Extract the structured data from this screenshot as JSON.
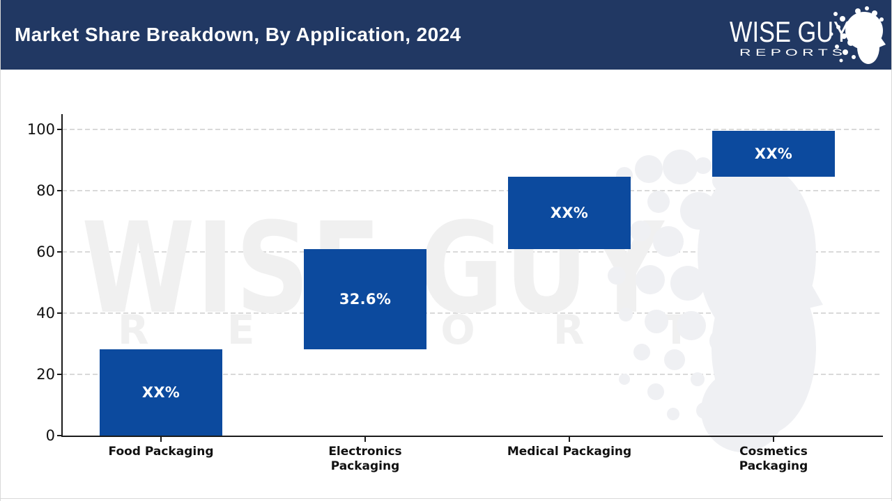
{
  "header": {
    "title": "Market Share Breakdown, By Application, 2024",
    "bg_color": "#213863",
    "logo": {
      "name_line": "WISE GUY",
      "sub_line": "R E P O R T S"
    }
  },
  "watermark": {
    "name_line": "WISE GUY",
    "sub_line": "R E P O R T S"
  },
  "chart_data": {
    "type": "bar",
    "subtype": "waterfall",
    "title": "Market Share Breakdown, By Application, 2024",
    "categories": [
      "Food Packaging",
      "Electronics Packaging",
      "Medical Packaging",
      "Cosmetics Packaging"
    ],
    "category_label_lines": [
      [
        "Food Packaging"
      ],
      [
        "Electronics",
        "Packaging"
      ],
      [
        "Medical Packaging"
      ],
      [
        "Cosmetics",
        "Packaging"
      ]
    ],
    "series": [
      {
        "name": "Market share (%)",
        "segments": [
          {
            "category": "Food Packaging",
            "start": 0,
            "end": 28.2,
            "label": "XX%"
          },
          {
            "category": "Electronics Packaging",
            "start": 28.2,
            "end": 60.8,
            "label": "32.6%"
          },
          {
            "category": "Medical Packaging",
            "start": 60.8,
            "end": 84.5,
            "label": "XX%"
          },
          {
            "category": "Cosmetics Packaging",
            "start": 84.5,
            "end": 99.5,
            "label": "XX%"
          }
        ]
      }
    ],
    "ylim": [
      0,
      100
    ],
    "yticks": [
      0,
      20,
      40,
      60,
      80,
      100
    ],
    "grid": "horizontal-dashed",
    "legend": "none",
    "bar_color": "#0c4a9e",
    "bar_label_color": "#ffffff",
    "grid_color": "#d9d9d9",
    "axis_color": "#1a1a1a"
  }
}
